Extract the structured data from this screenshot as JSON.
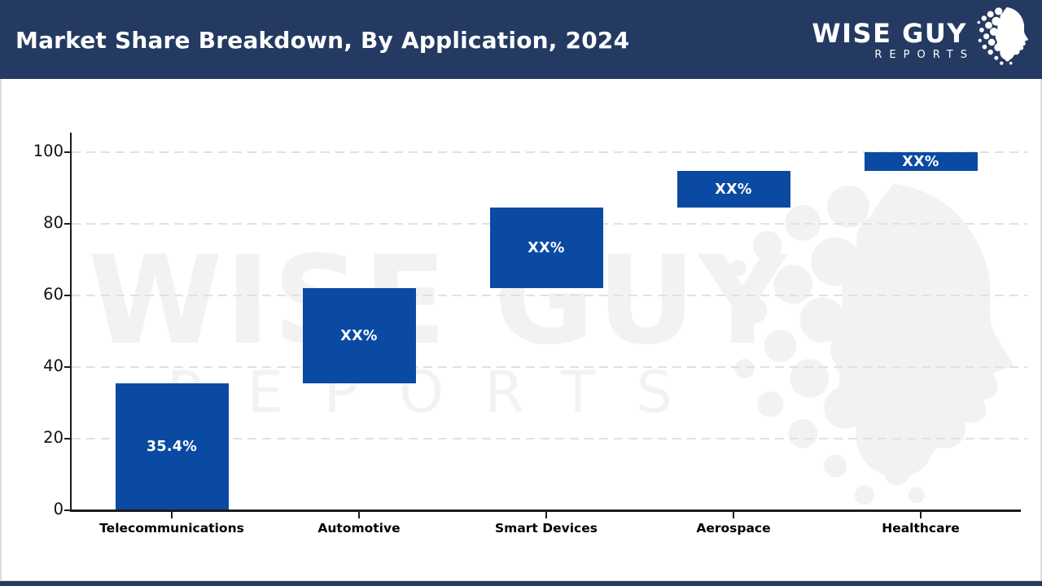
{
  "header": {
    "title": "Market Share Breakdown, By Application, 2024",
    "logo": {
      "line1": "WISE GUY",
      "line2": "REPORTS"
    }
  },
  "watermark": {
    "line1": "WISE GUY",
    "line2": "REPORTS",
    "head_icon": "wise-guy-head"
  },
  "colors": {
    "header_bg": "#243a62",
    "footer_bg": "#243a62",
    "bar": "#0b4aa2",
    "bar_label": "#ffffff",
    "axis": "#1b1b1b",
    "grid": "#e1e1e1",
    "tick_label": "#111111",
    "watermark": "#f2f2f3",
    "frame_border": "#dcdcdc"
  },
  "chart_data": {
    "type": "bar",
    "subtype": "floating-waterfall",
    "title": "Market Share Breakdown, By Application, 2024",
    "categories": [
      "Telecommunications",
      "Automotive",
      "Smart Devices",
      "Aerospace",
      "Healthcare"
    ],
    "segments": [
      {
        "category": "Telecommunications",
        "start": 0,
        "end": 35.4,
        "label": "35.4%"
      },
      {
        "category": "Automotive",
        "start": 35.4,
        "end": 62,
        "label": "XX%"
      },
      {
        "category": "Smart Devices",
        "start": 62,
        "end": 84.5,
        "label": "XX%"
      },
      {
        "category": "Aerospace",
        "start": 84.5,
        "end": 94.7,
        "label": "XX%"
      },
      {
        "category": "Healthcare",
        "start": 94.7,
        "end": 100,
        "label": "XX%"
      }
    ],
    "yticks": [
      0,
      20,
      40,
      60,
      80,
      100
    ],
    "ylim": [
      0,
      105.5
    ],
    "xlabel": "",
    "ylabel": "",
    "grid": "horizontal-dashed",
    "legend_position": "none"
  }
}
